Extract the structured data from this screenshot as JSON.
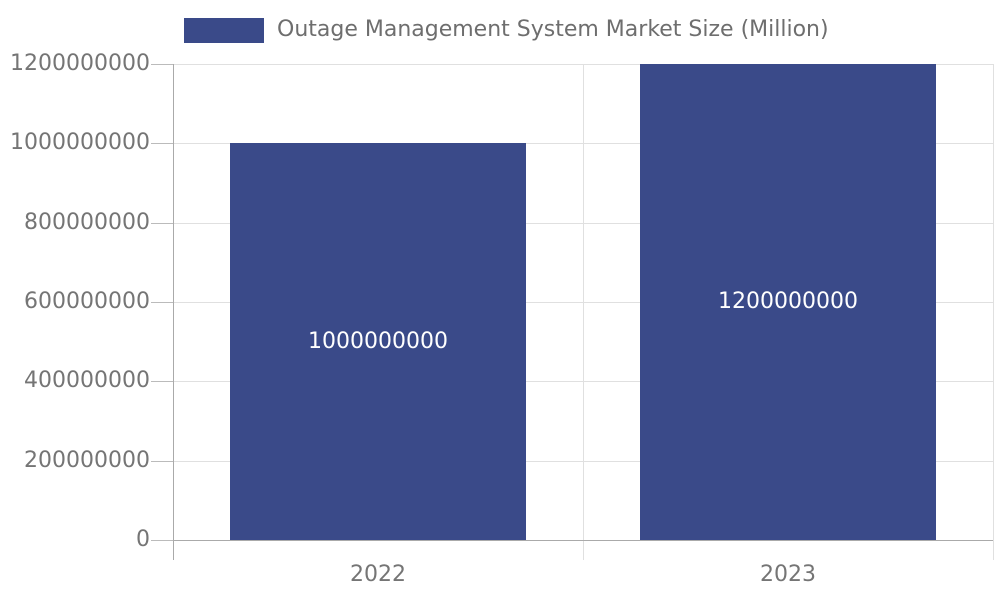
{
  "chart_data": {
    "type": "bar",
    "title": "Outage Management System Market Size (Million)",
    "categories": [
      "2022",
      "2023"
    ],
    "series": [
      {
        "name": "Outage Management System Market Size (Million)",
        "values": [
          1000000000,
          1200000000
        ]
      }
    ],
    "bar_labels": [
      "1000000000",
      "1200000000"
    ],
    "xlabel": "",
    "ylabel": "",
    "ylim": [
      0,
      1200000000
    ],
    "ytick_step": 200000000,
    "yticks": [
      "0",
      "200000000",
      "400000000",
      "600000000",
      "800000000",
      "1000000000",
      "1200000000"
    ],
    "grid": true,
    "legend_position": "top",
    "colors": {
      "bar": "#3a4a89",
      "grid_line": "#e0e0e0",
      "axis_line": "#aaaaaa",
      "tick_dash": "#bbbbbb",
      "tick_text": "#757575",
      "legend_text": "#6e6e6e",
      "bar_label_text": "#ffffff",
      "background": "#ffffff"
    }
  }
}
